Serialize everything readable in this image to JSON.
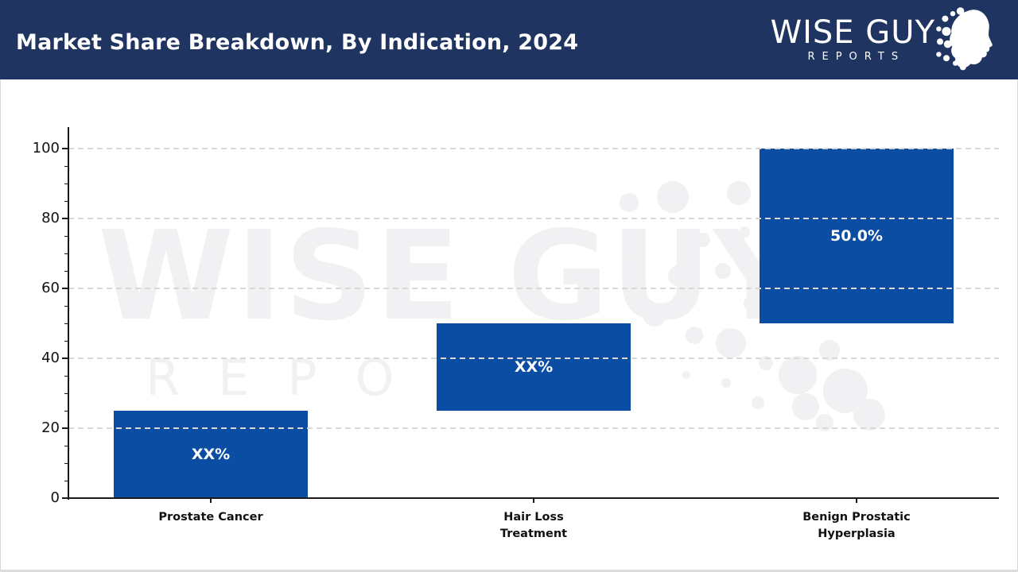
{
  "header": {
    "title": "Market Share Breakdown, By Indication, 2024",
    "logo": {
      "line1": "WISE GUY",
      "line2": "REPORTS"
    }
  },
  "watermark": {
    "line1": "WISE GUY",
    "line2": "REPORTS"
  },
  "chart_data": {
    "type": "bar",
    "subtype": "floating-waterfall",
    "title": "Market Share Breakdown, By Indication, 2024",
    "categories": [
      "Prostate Cancer",
      "Hair Loss Treatment",
      "Benign Prostatic Hyperplasia"
    ],
    "category_lines": [
      [
        "Prostate Cancer"
      ],
      [
        "Hair Loss",
        "Treatment"
      ],
      [
        "Benign Prostatic",
        "Hyperplasia"
      ]
    ],
    "bars": [
      {
        "category": "Prostate Cancer",
        "start": 0,
        "end": 25,
        "label": "XX%"
      },
      {
        "category": "Hair Loss Treatment",
        "start": 25,
        "end": 50,
        "label": "XX%"
      },
      {
        "category": "Benign Prostatic Hyperplasia",
        "start": 50,
        "end": 100,
        "label": "50.0%"
      }
    ],
    "xlabel": "",
    "ylabel": "",
    "ylim": [
      0,
      100
    ],
    "yticks": [
      0,
      20,
      40,
      60,
      80,
      100
    ],
    "minor_tick_step": 5,
    "grid": true,
    "grid_style": "dashed",
    "legend": "none",
    "bar_color": "#0b4da2",
    "bar_label_color": "#ffffff"
  },
  "colors": {
    "header_bg": "#1f3461",
    "bar": "#0b4da2",
    "watermark": "#f1f1f3",
    "gridline": "#d8d8d8",
    "axis": "#1a1a1a",
    "border": "#d9d9d9"
  }
}
